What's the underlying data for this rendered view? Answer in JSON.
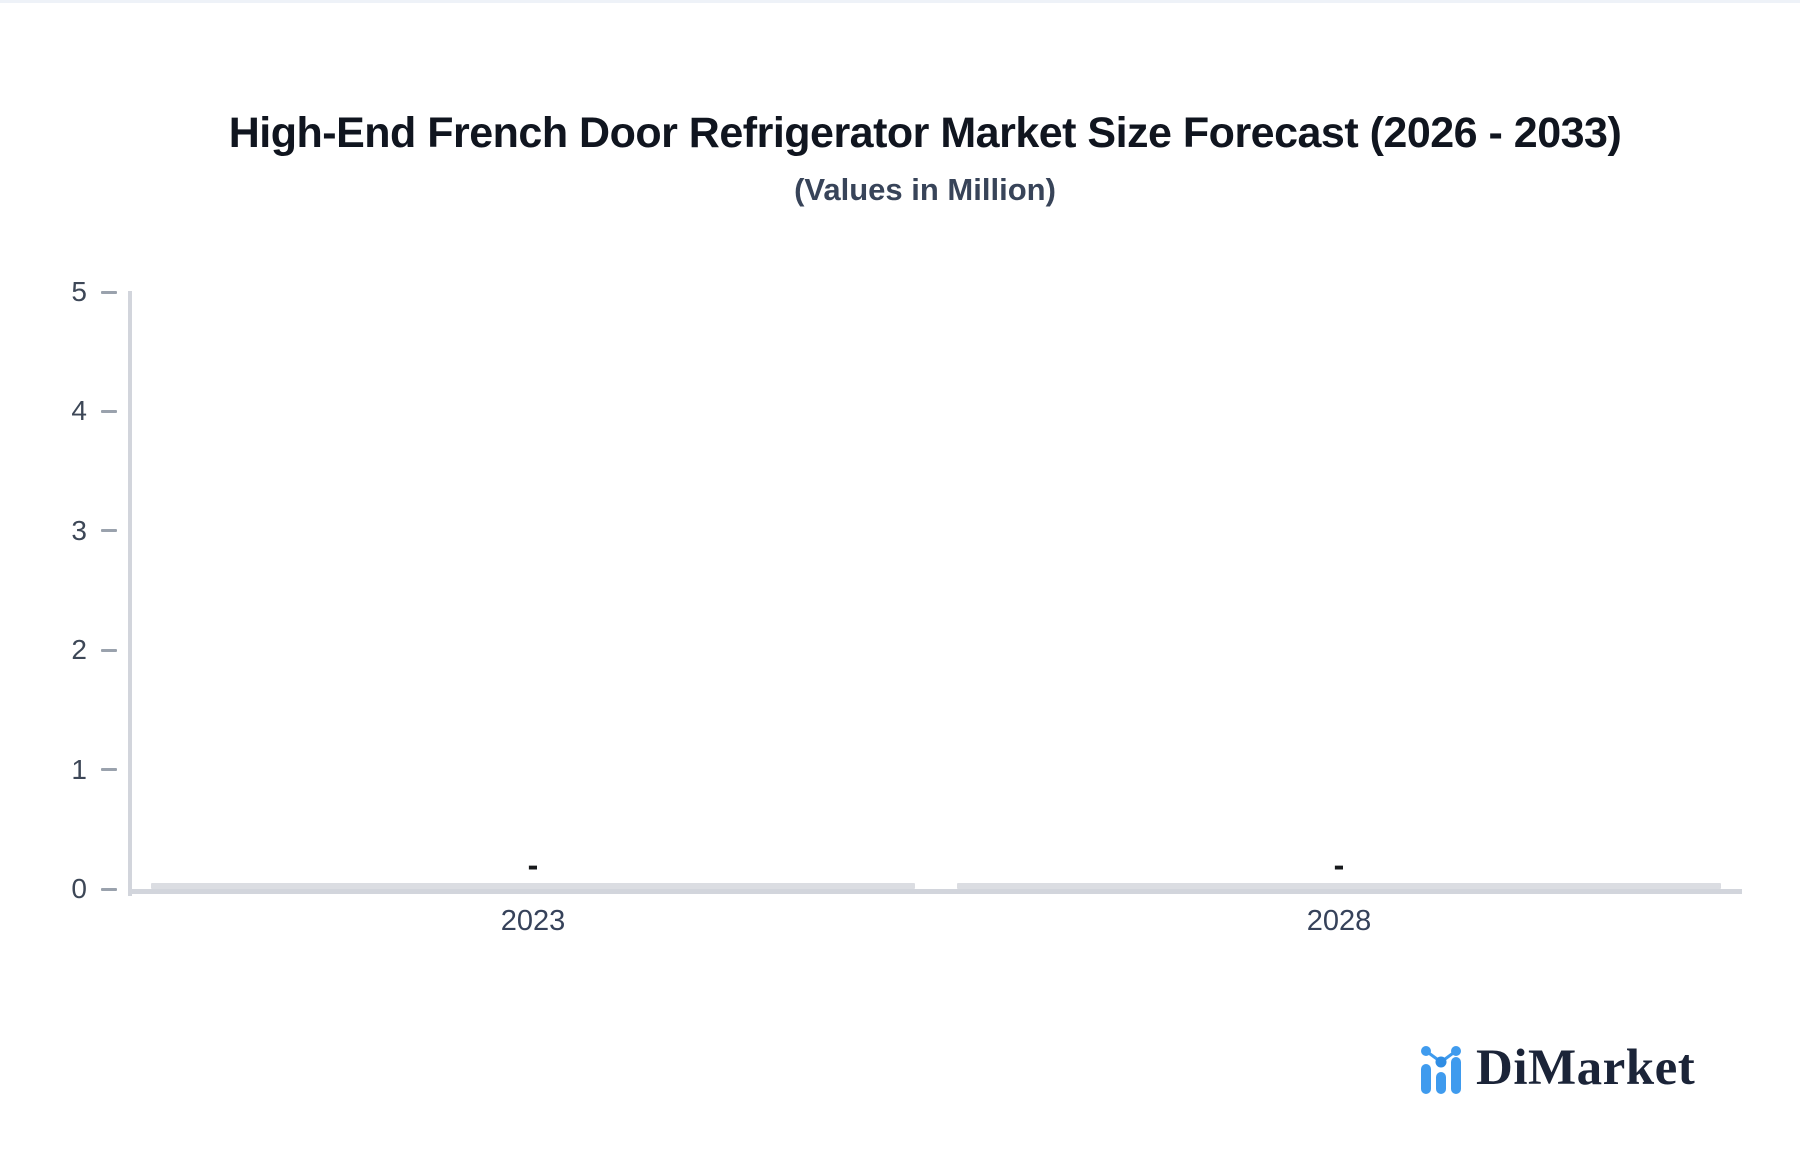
{
  "header": {
    "title": "High-End French Door Refrigerator Market Size Forecast (2026 - 2033)",
    "subtitle": "(Values in Million)"
  },
  "chart_data": {
    "type": "bar",
    "title": "High-End French Door Refrigerator Market Size Forecast (2026 - 2033)",
    "subtitle": "(Values in Million)",
    "categories": [
      "2023",
      "2028"
    ],
    "values": [
      null,
      null
    ],
    "value_labels": [
      "-",
      "-"
    ],
    "xlabel": "",
    "ylabel": "",
    "ylim": [
      0,
      5
    ],
    "yticks": [
      0,
      1,
      2,
      3,
      4,
      5
    ],
    "grid": false,
    "legend": "none",
    "bar_color": "#dbdde2",
    "axis_color": "#d2d5dc",
    "tick_color": "#9aa2ad",
    "label_color": "#3d4757"
  },
  "branding": {
    "logo_text": "DiMarket",
    "logo_icon": "bar-chart-trend-icon",
    "accent_blue": "#3f9bee",
    "text_color": "#1b2438"
  }
}
